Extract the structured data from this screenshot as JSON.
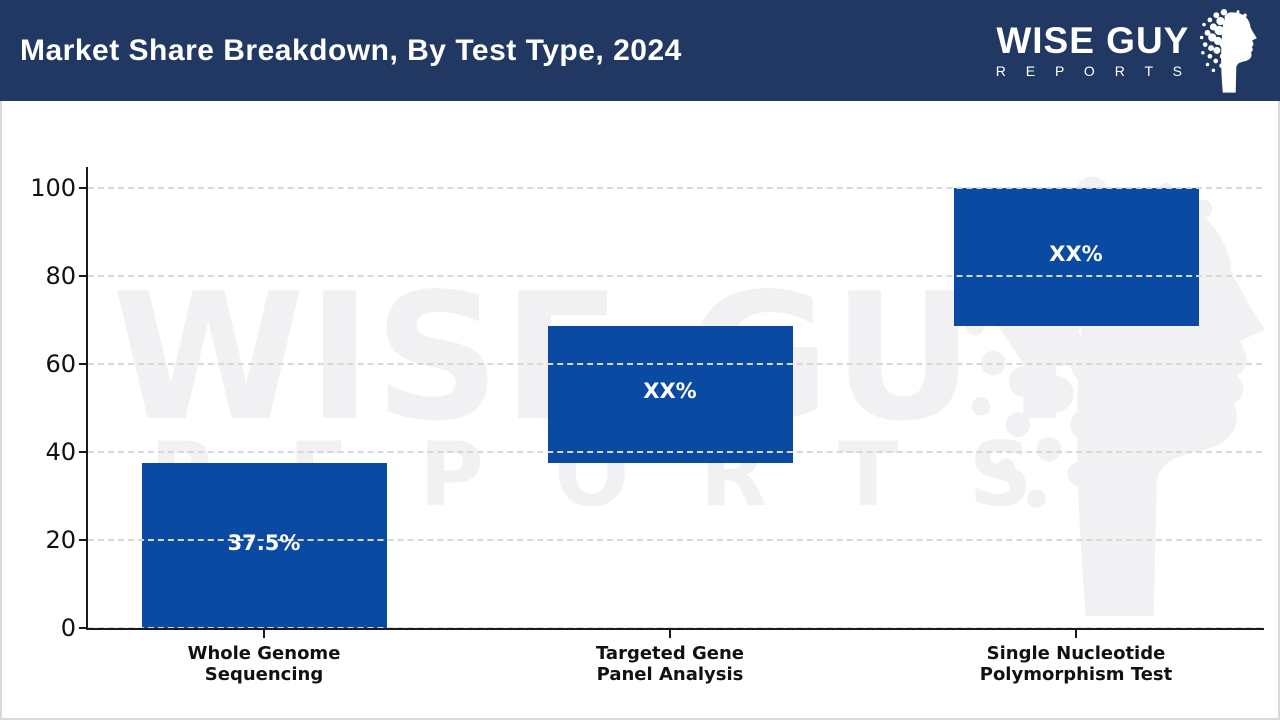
{
  "header": {
    "title": "Market Share Breakdown, By Test Type, 2024",
    "logo": {
      "line1": "WISE GUY",
      "line2": "R E P O R T S"
    }
  },
  "watermark": {
    "line1": "WISE GUY",
    "line2": "R E P O R T S"
  },
  "colors": {
    "header_bg": "#213863",
    "bar": "#0B4AA2",
    "grid": "#D8D8D8",
    "axis": "#1A1A1A",
    "watermark": "#F1F1F3",
    "bar_label": "#FFFFFF"
  },
  "chart_data": {
    "type": "bar",
    "variant": "stacked-waterfall",
    "title": "Market Share Breakdown, By Test Type, 2024",
    "segments": [
      {
        "category": [
          "Whole Genome",
          "Sequencing"
        ],
        "start": 0,
        "end": 37.5,
        "value_label": "37.5%"
      },
      {
        "category": [
          "Targeted Gene",
          "Panel Analysis"
        ],
        "start": 37.5,
        "end": 68.75,
        "value_label": "XX%"
      },
      {
        "category": [
          "Single Nucleotide",
          "Polymorphism Test"
        ],
        "start": 68.75,
        "end": 100,
        "value_label": "XX%"
      }
    ],
    "yticks": [
      0,
      20,
      40,
      60,
      80,
      100
    ],
    "ylim": [
      0,
      104.3
    ],
    "xlabel": "",
    "ylabel": "",
    "grid": "horizontal-dashed",
    "legend": "none"
  }
}
